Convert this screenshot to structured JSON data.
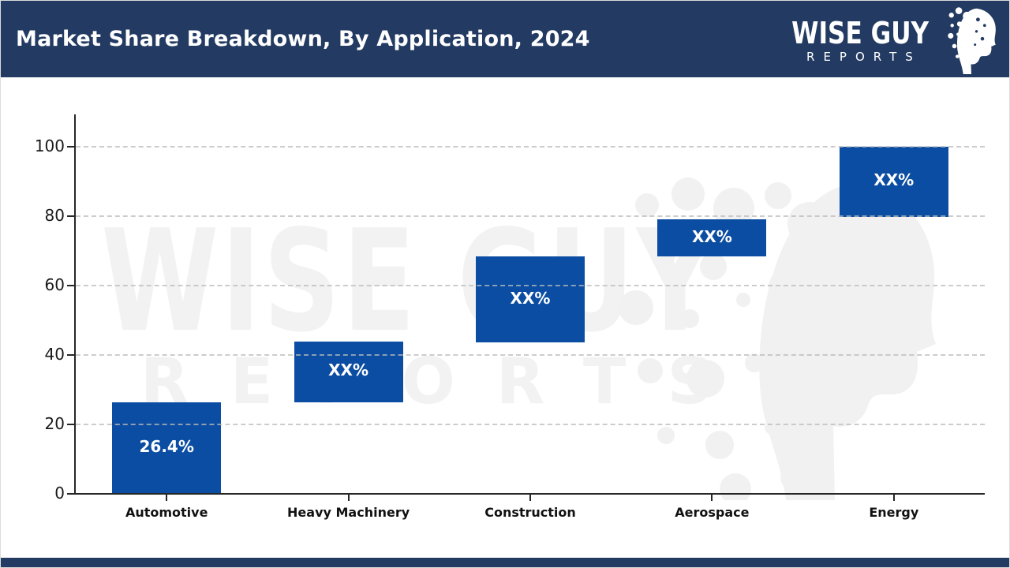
{
  "header": {
    "title": "Market Share Breakdown, By Application, 2024",
    "bg_color": "#233a62",
    "logo": {
      "line1": "WISE GUY",
      "line2": "REPORTS"
    }
  },
  "watermark": {
    "line1": "WISE GUY",
    "line2": "REPORTS"
  },
  "footer": {
    "bg_color": "#233a62"
  },
  "chart_data": {
    "type": "bar",
    "subtype": "waterfall",
    "title": "Market Share Breakdown, By Application, 2024",
    "xlabel": "",
    "ylabel": "",
    "categories": [
      "Automotive",
      "Heavy Machinery",
      "Construction",
      "Aerospace",
      "Energy"
    ],
    "segments": [
      {
        "category": "Automotive",
        "start": 0,
        "end": 26.4,
        "label": "26.4%"
      },
      {
        "category": "Heavy Machinery",
        "start": 26.4,
        "end": 43.9,
        "label": "XX%"
      },
      {
        "category": "Construction",
        "start": 43.6,
        "end": 68.4,
        "label": "XX%"
      },
      {
        "category": "Aerospace",
        "start": 68.3,
        "end": 79.1,
        "label": "XX%"
      },
      {
        "category": "Energy",
        "start": 79.8,
        "end": 100,
        "label": "XX%"
      }
    ],
    "yticks": [
      0,
      20,
      40,
      60,
      80,
      100
    ],
    "ylim": [
      0,
      109
    ],
    "grid": true,
    "grid_style": "dashed",
    "legend": "none",
    "bar_color": "#0b4da2",
    "grid_color": "#d9d9d9",
    "axis_color": "#262626",
    "value_label_color": "#ffffff"
  }
}
